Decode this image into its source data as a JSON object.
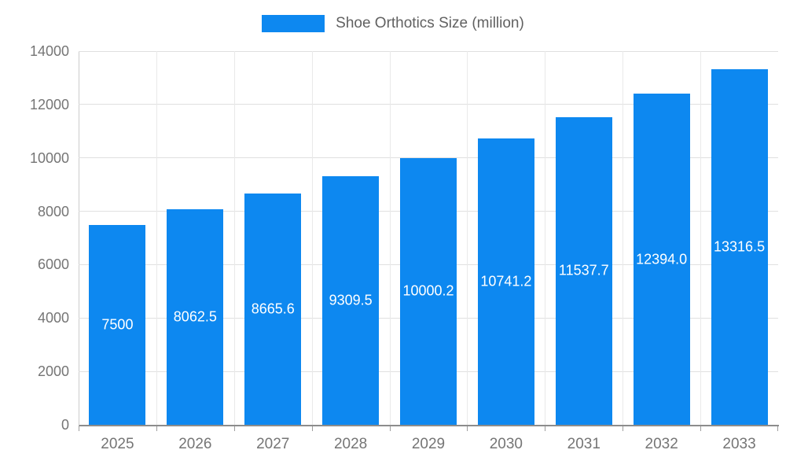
{
  "chart_data": {
    "type": "bar",
    "title": "Shoe Orthotics Size (million)",
    "categories": [
      "2025",
      "2026",
      "2027",
      "2028",
      "2029",
      "2030",
      "2031",
      "2032",
      "2033"
    ],
    "values": [
      7500,
      8062.5,
      8665.6,
      9309.5,
      10000.2,
      10741.2,
      11537.7,
      12394.0,
      13316.5
    ],
    "value_labels": [
      "7500",
      "8062.5",
      "8665.6",
      "9309.5",
      "10000.2",
      "10741.2",
      "11537.7",
      "12394.0",
      "13316.5"
    ],
    "xlabel": "",
    "ylabel": "",
    "ylim": [
      0,
      14000
    ],
    "y_ticks": [
      0,
      2000,
      4000,
      6000,
      8000,
      10000,
      12000,
      14000
    ],
    "grid": true,
    "legend_position": "top",
    "bar_color": "#0d88f0",
    "colors": {
      "bar": "#0d88f0",
      "axis_text": "#757575",
      "legend_text": "#616161",
      "gridline": "#e0e0e0",
      "background": "#ffffff",
      "value_label_text": "#ffffff"
    }
  }
}
